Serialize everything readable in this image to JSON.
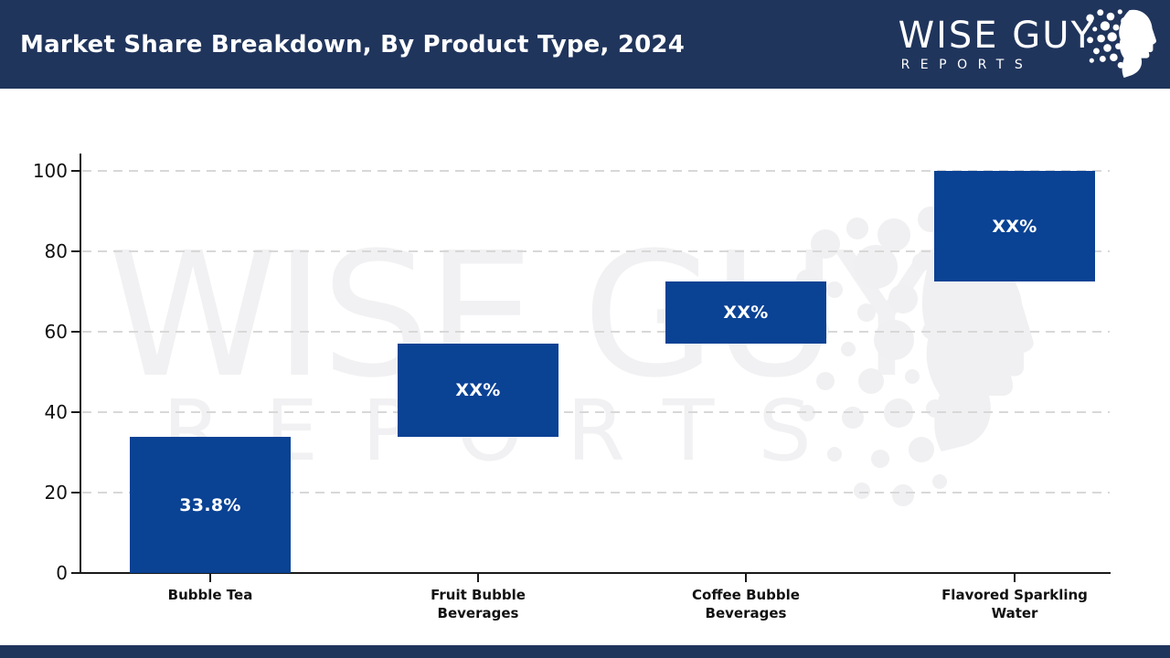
{
  "header": {
    "title": "Market Share Breakdown, By Product Type, 2024",
    "logo": {
      "wordmark": "WISE GUY",
      "subtitle": "REPORTS"
    }
  },
  "watermark": {
    "wordmark": "WISE GUY",
    "subtitle": "REPORTS"
  },
  "colors": {
    "header_bg": "#20355c",
    "footer_bg": "#20355c",
    "bar": "#0a4294",
    "bar_label": "#ffffff",
    "gridline": "#d8d8d8",
    "axis": "#1a1a1a",
    "watermark": "#f1f1f3",
    "background": "#ffffff"
  },
  "chart_data": {
    "type": "bar",
    "subtype": "waterfall",
    "title": "Market Share Breakdown, By Product Type, 2024",
    "categories": [
      "Bubble Tea",
      "Fruit Bubble Beverages",
      "Coffee Bubble Beverages",
      "Flavored Sparkling Water"
    ],
    "segments": [
      {
        "category": "Bubble Tea",
        "start": 0,
        "end": 33.8,
        "label": "33.8%"
      },
      {
        "category": "Fruit Bubble Beverages",
        "start": 33.8,
        "end": 57.0,
        "label": "XX%"
      },
      {
        "category": "Coffee Bubble Beverages",
        "start": 57.0,
        "end": 72.5,
        "label": "XX%"
      },
      {
        "category": "Flavored Sparkling Water",
        "start": 72.5,
        "end": 100,
        "label": "XX%"
      }
    ],
    "ylim": [
      0,
      100
    ],
    "yticks": [
      0,
      20,
      40,
      60,
      80,
      100
    ],
    "ytick_labels": [
      "0",
      "20",
      "40",
      "60",
      "80",
      "100"
    ],
    "xtick_labels": [
      "Bubble Tea",
      "Fruit Bubble\nBeverages",
      "Coffee Bubble\nBeverages",
      "Flavored Sparkling\nWater"
    ],
    "xlabel": "",
    "ylabel": "",
    "grid": "horizontal-dashed",
    "legend": "none"
  }
}
